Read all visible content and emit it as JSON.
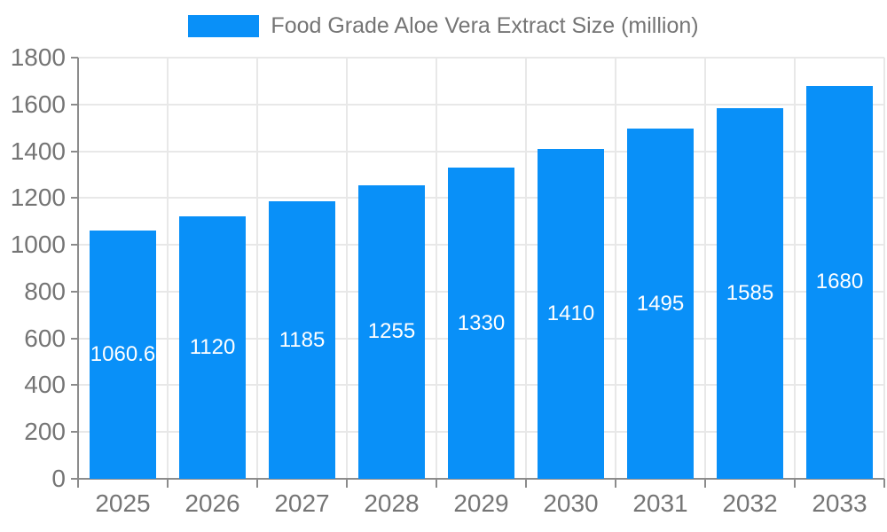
{
  "chart_data": {
    "type": "bar",
    "title": "Food Grade Aloe Vera Extract Size (million)",
    "categories": [
      "2025",
      "2026",
      "2027",
      "2028",
      "2029",
      "2030",
      "2031",
      "2032",
      "2033"
    ],
    "values": [
      1060.6,
      1120,
      1185,
      1255,
      1330,
      1410,
      1495,
      1585,
      1680
    ],
    "xlabel": "",
    "ylabel": "",
    "ylim": [
      0,
      1800
    ],
    "ytick_step": 200,
    "yticks": [
      0,
      200,
      400,
      600,
      800,
      1000,
      1200,
      1400,
      1600,
      1800
    ],
    "grid": true,
    "legend_position": "top-center",
    "bar_color": "#0990F8",
    "value_label_color": "#FFFFFF",
    "grid_color": "#E8E8E8",
    "axis_color": "#8C8C8C",
    "text_color": "#757575"
  }
}
